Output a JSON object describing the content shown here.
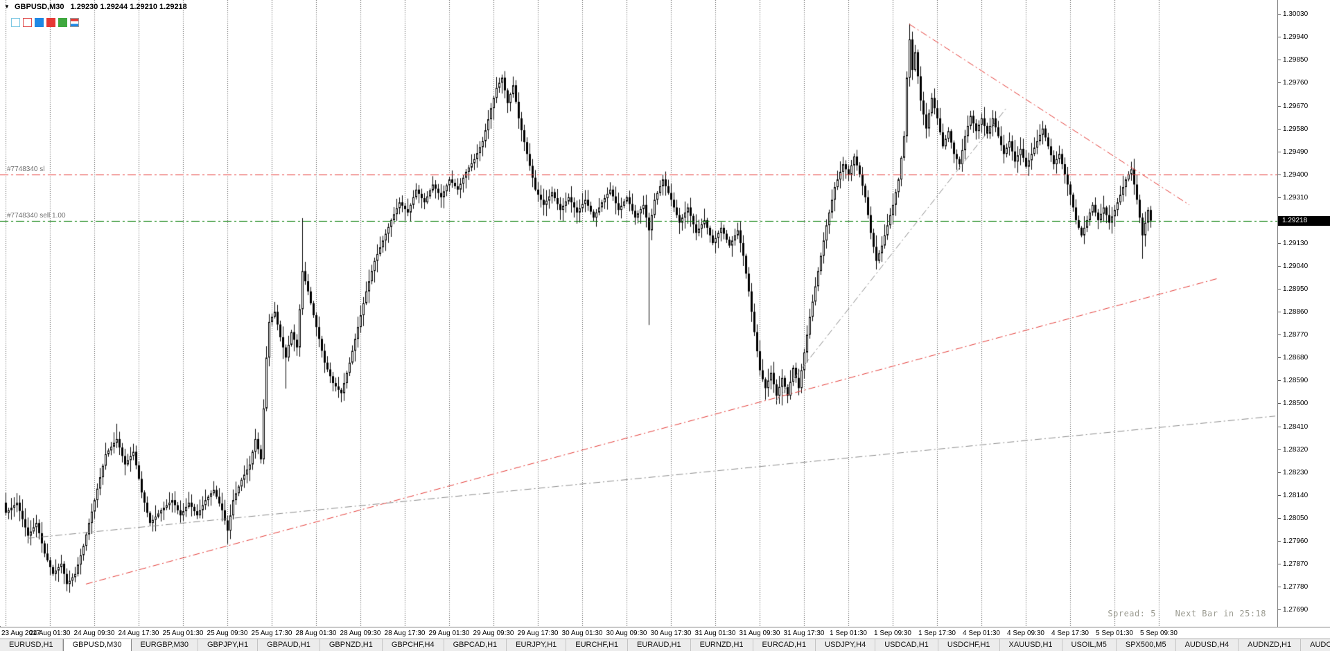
{
  "chart": {
    "title": {
      "menu_icon": "▼",
      "symbol": "GBPUSD,M30",
      "ohlc": "1.29230 1.29244 1.29210 1.29218"
    },
    "toolbar_swatches": [
      {
        "name": "swatch-outline-cyan-icon",
        "fill": "#ffffff",
        "border": "#7ec8e3"
      },
      {
        "name": "swatch-outline-red-icon",
        "fill": "#ffffff",
        "border": "#e05050"
      },
      {
        "name": "swatch-blue-icon",
        "fill": "#1e88e5",
        "border": "#1e88e5"
      },
      {
        "name": "swatch-red-icon",
        "fill": "#e53935",
        "border": "#e53935"
      },
      {
        "name": "swatch-green-icon",
        "fill": "#3fa83f",
        "border": "#3fa83f"
      },
      {
        "name": "swatch-striped-flag-icon",
        "stripes": [
          "#e53935",
          "#ffffff",
          "#1e88e5"
        ]
      }
    ],
    "order_lines": [
      {
        "label": "#7748340 sl",
        "price": 1.294,
        "color": "#e53935",
        "dash": [
          12,
          4,
          3,
          4
        ]
      },
      {
        "label": "#7748340 sell 1.00",
        "price": 1.29218,
        "color": "#007a00",
        "dash": [
          12,
          4,
          3,
          4
        ]
      }
    ],
    "current_price": "1.29218",
    "spread_label": "Spread: 5",
    "next_bar_label": "Next Bar in 25:18",
    "y_axis": {
      "price_top": 1.30085,
      "price_bottom": 1.27625,
      "ticks": [
        "1.30030",
        "1.29940",
        "1.29850",
        "1.29760",
        "1.29670",
        "1.29580",
        "1.29490",
        "1.29400",
        "1.29310",
        "1.29220",
        "1.29130",
        "1.29040",
        "1.28950",
        "1.28860",
        "1.28770",
        "1.28680",
        "1.28590",
        "1.28500",
        "1.28410",
        "1.28320",
        "1.28230",
        "1.28140",
        "1.28050",
        "1.27960",
        "1.27870",
        "1.27780",
        "1.27690"
      ]
    },
    "x_axis": {
      "labels": [
        "23 Aug 2017",
        "24 Aug 01:30",
        "24 Aug 09:30",
        "24 Aug 17:30",
        "25 Aug 01:30",
        "25 Aug 09:30",
        "25 Aug 17:30",
        "28 Aug 01:30",
        "28 Aug 09:30",
        "28 Aug 17:30",
        "29 Aug 01:30",
        "29 Aug 09:30",
        "29 Aug 17:30",
        "30 Aug 01:30",
        "30 Aug 09:30",
        "30 Aug 17:30",
        "31 Aug 01:30",
        "31 Aug 09:30",
        "31 Aug 17:30",
        "1 Sep 01:30",
        "1 Sep 09:30",
        "1 Sep 17:30",
        "4 Sep 01:30",
        "4 Sep 09:30",
        "4 Sep 17:30",
        "5 Sep 01:30",
        "5 Sep 09:30"
      ]
    }
  },
  "chart_data": {
    "type": "candlestick",
    "symbol": "GBPUSD",
    "timeframe": "M30",
    "bars_total": 414,
    "bars_per_gridline": 16,
    "bar_step": 4,
    "left_offset": 8,
    "ylim": [
      1.27625,
      1.30085
    ],
    "close_anchors": [
      [
        0,
        1.2807
      ],
      [
        4,
        1.2811
      ],
      [
        8,
        1.2798
      ],
      [
        11,
        1.2803
      ],
      [
        14,
        1.2791
      ],
      [
        17,
        1.2783
      ],
      [
        20,
        1.2787
      ],
      [
        22,
        1.2779
      ],
      [
        25,
        1.2783
      ],
      [
        28,
        1.2794
      ],
      [
        32,
        1.2812
      ],
      [
        36,
        1.283
      ],
      [
        40,
        1.2836
      ],
      [
        43,
        1.2826
      ],
      [
        46,
        1.2831
      ],
      [
        49,
        1.2815
      ],
      [
        52,
        1.2803
      ],
      [
        56,
        1.2808
      ],
      [
        60,
        1.2812
      ],
      [
        63,
        1.2806
      ],
      [
        66,
        1.2811
      ],
      [
        69,
        1.2806
      ],
      [
        72,
        1.2812
      ],
      [
        75,
        1.2816
      ],
      [
        78,
        1.2808
      ],
      [
        80,
        1.28
      ],
      [
        82,
        1.2812
      ],
      [
        85,
        1.282
      ],
      [
        88,
        1.2826
      ],
      [
        90,
        1.2836
      ],
      [
        92,
        1.2828
      ],
      [
        94,
        1.2868
      ],
      [
        95,
        1.2882
      ],
      [
        97,
        1.2886
      ],
      [
        99,
        1.2876
      ],
      [
        101,
        1.2868
      ],
      [
        103,
        1.2878
      ],
      [
        105,
        1.2872
      ],
      [
        107,
        1.2902
      ],
      [
        109,
        1.2894
      ],
      [
        112,
        1.288
      ],
      [
        115,
        1.2866
      ],
      [
        118,
        1.2858
      ],
      [
        121,
        1.2854
      ],
      [
        124,
        1.2866
      ],
      [
        127,
        1.288
      ],
      [
        130,
        1.2894
      ],
      [
        133,
        1.2906
      ],
      [
        136,
        1.2914
      ],
      [
        139,
        1.2922
      ],
      [
        142,
        1.2929
      ],
      [
        145,
        1.2925
      ],
      [
        148,
        1.2934
      ],
      [
        151,
        1.2929
      ],
      [
        154,
        1.2936
      ],
      [
        157,
        1.2931
      ],
      [
        160,
        1.2938
      ],
      [
        163,
        1.2934
      ],
      [
        166,
        1.2941
      ],
      [
        169,
        1.2946
      ],
      [
        172,
        1.2953
      ],
      [
        175,
        1.2966
      ],
      [
        177,
        1.2974
      ],
      [
        179,
        1.2978
      ],
      [
        181,
        1.2968
      ],
      [
        183,
        1.2975
      ],
      [
        185,
        1.2962
      ],
      [
        188,
        1.2948
      ],
      [
        191,
        1.2934
      ],
      [
        194,
        1.2928
      ],
      [
        197,
        1.2933
      ],
      [
        200,
        1.2926
      ],
      [
        203,
        1.2931
      ],
      [
        206,
        1.2925
      ],
      [
        209,
        1.293
      ],
      [
        212,
        1.2923
      ],
      [
        215,
        1.2929
      ],
      [
        218,
        1.2934
      ],
      [
        221,
        1.2926
      ],
      [
        224,
        1.2931
      ],
      [
        227,
        1.2923
      ],
      [
        230,
        1.2928
      ],
      [
        232,
        1.2918
      ],
      [
        234,
        1.293
      ],
      [
        237,
        1.2938
      ],
      [
        240,
        1.293
      ],
      [
        243,
        1.2921
      ],
      [
        246,
        1.2927
      ],
      [
        249,
        1.2917
      ],
      [
        252,
        1.2922
      ],
      [
        255,
        1.2913
      ],
      [
        258,
        1.2919
      ],
      [
        261,
        1.2912
      ],
      [
        264,
        1.2918
      ],
      [
        266,
        1.2908
      ],
      [
        268,
        1.2894
      ],
      [
        270,
        1.2878
      ],
      [
        272,
        1.2863
      ],
      [
        274,
        1.2856
      ],
      [
        276,
        1.2862
      ],
      [
        278,
        1.2853
      ],
      [
        280,
        1.286
      ],
      [
        282,
        1.2853
      ],
      [
        284,
        1.2864
      ],
      [
        286,
        1.2856
      ],
      [
        288,
        1.287
      ],
      [
        290,
        1.2884
      ],
      [
        293,
        1.2902
      ],
      [
        296,
        1.292
      ],
      [
        299,
        1.2935
      ],
      [
        302,
        1.2944
      ],
      [
        304,
        1.294
      ],
      [
        306,
        1.2947
      ],
      [
        308,
        1.294
      ],
      [
        310,
        1.2931
      ],
      [
        312,
        1.2917
      ],
      [
        314,
        1.2906
      ],
      [
        316,
        1.2912
      ],
      [
        318,
        1.292
      ],
      [
        320,
        1.2928
      ],
      [
        322,
        1.2938
      ],
      [
        324,
        1.2955
      ],
      [
        325,
        1.2978
      ],
      [
        326,
        1.2993
      ],
      [
        327,
        1.2981
      ],
      [
        328,
        1.2988
      ],
      [
        330,
        1.2969
      ],
      [
        332,
        1.2958
      ],
      [
        334,
        1.297
      ],
      [
        336,
        1.2962
      ],
      [
        338,
        1.2951
      ],
      [
        340,
        1.2957
      ],
      [
        342,
        1.2948
      ],
      [
        344,
        1.2944
      ],
      [
        346,
        1.2955
      ],
      [
        348,
        1.2963
      ],
      [
        350,
        1.2957
      ],
      [
        352,
        1.2962
      ],
      [
        354,
        1.2956
      ],
      [
        356,
        1.2962
      ],
      [
        358,
        1.2955
      ],
      [
        360,
        1.2948
      ],
      [
        362,
        1.2953
      ],
      [
        364,
        1.2945
      ],
      [
        366,
        1.295
      ],
      [
        368,
        1.2943
      ],
      [
        370,
        1.2948
      ],
      [
        372,
        1.2953
      ],
      [
        374,
        1.2958
      ],
      [
        376,
        1.2951
      ],
      [
        378,
        1.2944
      ],
      [
        380,
        1.2948
      ],
      [
        382,
        1.294
      ],
      [
        384,
        1.2932
      ],
      [
        386,
        1.2922
      ],
      [
        388,
        1.2916
      ],
      [
        390,
        1.2922
      ],
      [
        392,
        1.2928
      ],
      [
        394,
        1.2922
      ],
      [
        396,
        1.2927
      ],
      [
        398,
        1.2921
      ],
      [
        400,
        1.2926
      ],
      [
        402,
        1.2932
      ],
      [
        404,
        1.2938
      ],
      [
        406,
        1.2942
      ],
      [
        408,
        1.293
      ],
      [
        410,
        1.2916
      ],
      [
        412,
        1.2926
      ],
      [
        413,
        1.29218
      ]
    ],
    "wick_overrides": [
      [
        22,
        "low",
        1.27762
      ],
      [
        40,
        "high",
        1.2842
      ],
      [
        80,
        "low",
        1.27948
      ],
      [
        90,
        "high",
        1.284
      ],
      [
        101,
        "low",
        1.28558
      ],
      [
        107,
        "high",
        1.29228
      ],
      [
        179,
        "high",
        1.29792
      ],
      [
        232,
        "low",
        1.28808
      ],
      [
        280,
        "low",
        1.28492
      ],
      [
        326,
        "high",
        1.29992
      ],
      [
        410,
        "low",
        1.29068
      ]
    ],
    "trend_lines": [
      {
        "name": "ascending-support-red",
        "from": [
          29,
          1.2779
        ],
        "to": [
          437,
          1.2899
        ],
        "color": "#e53935",
        "dash": [
          10,
          4,
          2,
          4
        ]
      },
      {
        "name": "descending-resistance-red",
        "from": [
          326,
          1.2999
        ],
        "to": [
          427,
          1.2928
        ],
        "color": "#e53935",
        "dash": [
          10,
          4,
          2,
          4
        ]
      },
      {
        "name": "long-trend-gray",
        "from": [
          8,
          1.2797
        ],
        "to": [
          458,
          1.2845
        ],
        "color": "#8a8a8a",
        "dash": [
          10,
          4,
          2,
          4
        ]
      },
      {
        "name": "steep-trend-gray",
        "from": [
          278,
          1.2851
        ],
        "to": [
          361,
          1.2966
        ],
        "color": "#8a8a8a",
        "dash": [
          10,
          4,
          2,
          4
        ]
      }
    ]
  },
  "tabs": {
    "active": "GBPUSD,M30",
    "items": [
      "EURUSD,H1",
      "GBPUSD,M30",
      "EURGBP,M30",
      "GBPJPY,H1",
      "GBPAUD,H1",
      "GBPNZD,H1",
      "GBPCHF,H4",
      "GBPCAD,H1",
      "EURJPY,H1",
      "EURCHF,H1",
      "EURAUD,H1",
      "EURNZD,H1",
      "EURCAD,H1",
      "USDJPY,H4",
      "USDCAD,H1",
      "USDCHF,H1",
      "XAUUSD,H1",
      "USOIL,M5",
      "SPX500,M5",
      "AUDUSD,H4",
      "AUDNZD,H1",
      "AUDCAD,Daily"
    ]
  }
}
